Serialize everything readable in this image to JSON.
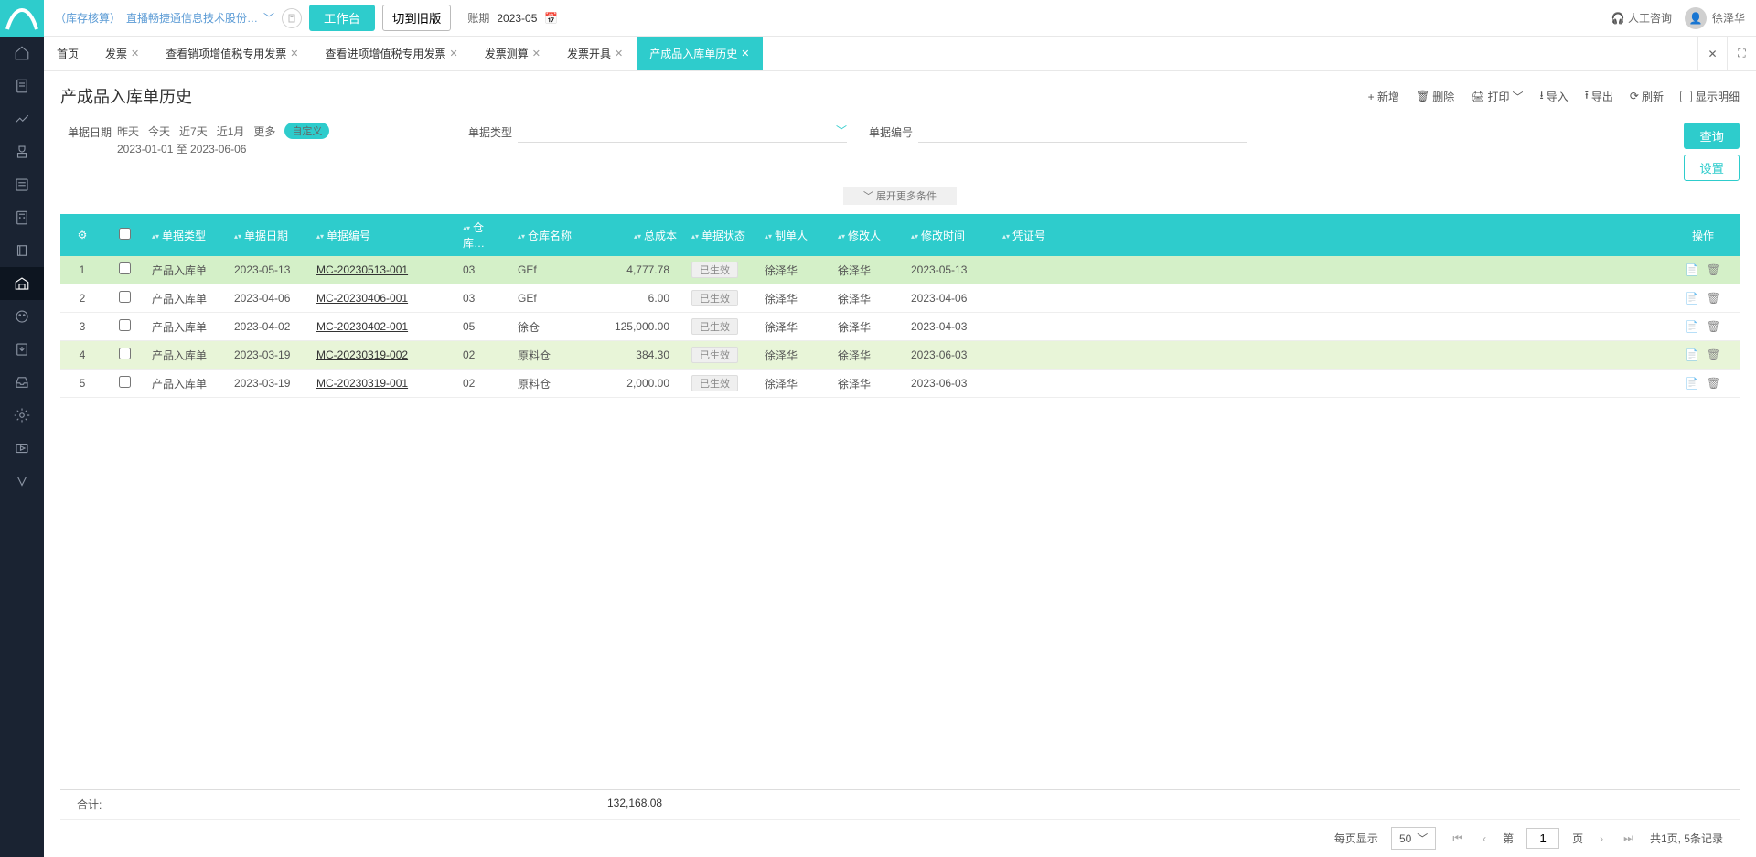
{
  "topbar": {
    "org_prefix": "（库存核算）",
    "org_name": "直播畅捷通信息技术股份…",
    "workbench": "工作台",
    "old_version": "切到旧版",
    "period_label": "账期",
    "period_value": "2023-05",
    "help": "人工咨询",
    "username": "徐泽华"
  },
  "tabs": [
    {
      "label": "首页",
      "closable": false,
      "active": false
    },
    {
      "label": "发票",
      "closable": true,
      "active": false
    },
    {
      "label": "查看销项增值税专用发票",
      "closable": true,
      "active": false
    },
    {
      "label": "查看进项增值税专用发票",
      "closable": true,
      "active": false
    },
    {
      "label": "发票测算",
      "closable": true,
      "active": false
    },
    {
      "label": "发票开具",
      "closable": true,
      "active": false
    },
    {
      "label": "产成品入库单历史",
      "closable": true,
      "active": true
    }
  ],
  "page": {
    "title": "产成品入库单历史",
    "actions": {
      "add": "+ 新增",
      "delete": "删除",
      "print": "打印",
      "import": "导入",
      "export": "导出",
      "refresh": "刷新",
      "show_detail": "显示明细"
    }
  },
  "filters": {
    "date_label": "单据日期",
    "shortcuts": [
      "昨天",
      "今天",
      "近7天",
      "近1月",
      "更多"
    ],
    "custom_chip": "自定义",
    "date_range": "2023-01-01 至 2023-06-06",
    "type_label": "单据类型",
    "no_label": "单据编号",
    "query": "查询",
    "settings": "设置",
    "expand": "展开更多条件"
  },
  "columns": [
    "",
    "",
    "单据类型",
    "单据日期",
    "单据编号",
    "仓库…",
    "仓库名称",
    "总成本",
    "单据状态",
    "制单人",
    "修改人",
    "修改时间",
    "凭证号",
    "操作"
  ],
  "rows": [
    {
      "idx": "1",
      "type": "产品入库单",
      "date": "2023-05-13",
      "no": "MC-20230513-001",
      "wh": "03",
      "whn": "GEf",
      "cost": "4,777.78",
      "status": "已生效",
      "maker": "徐泽华",
      "modifier": "徐泽华",
      "mtime": "2023-05-13",
      "voucher": "",
      "hl": "hl"
    },
    {
      "idx": "2",
      "type": "产品入库单",
      "date": "2023-04-06",
      "no": "MC-20230406-001",
      "wh": "03",
      "whn": "GEf",
      "cost": "6.00",
      "status": "已生效",
      "maker": "徐泽华",
      "modifier": "徐泽华",
      "mtime": "2023-04-06",
      "voucher": "",
      "hl": ""
    },
    {
      "idx": "3",
      "type": "产品入库单",
      "date": "2023-04-02",
      "no": "MC-20230402-001",
      "wh": "05",
      "whn": "徐仓",
      "cost": "125,000.00",
      "status": "已生效",
      "maker": "徐泽华",
      "modifier": "徐泽华",
      "mtime": "2023-04-03",
      "voucher": "",
      "hl": ""
    },
    {
      "idx": "4",
      "type": "产品入库单",
      "date": "2023-03-19",
      "no": "MC-20230319-002",
      "wh": "02",
      "whn": "原料仓",
      "cost": "384.30",
      "status": "已生效",
      "maker": "徐泽华",
      "modifier": "徐泽华",
      "mtime": "2023-06-03",
      "voucher": "",
      "hl": "hl2"
    },
    {
      "idx": "5",
      "type": "产品入库单",
      "date": "2023-03-19",
      "no": "MC-20230319-001",
      "wh": "02",
      "whn": "原料仓",
      "cost": "2,000.00",
      "status": "已生效",
      "maker": "徐泽华",
      "modifier": "徐泽华",
      "mtime": "2023-06-03",
      "voucher": "",
      "hl": ""
    }
  ],
  "totals": {
    "label": "合计:",
    "value": "132,168.08"
  },
  "pager": {
    "per_page_label": "每页显示",
    "page_size": "50",
    "page_label_pre": "第",
    "page_num": "1",
    "page_label_suf": "页",
    "summary": "共1页, 5条记录"
  }
}
